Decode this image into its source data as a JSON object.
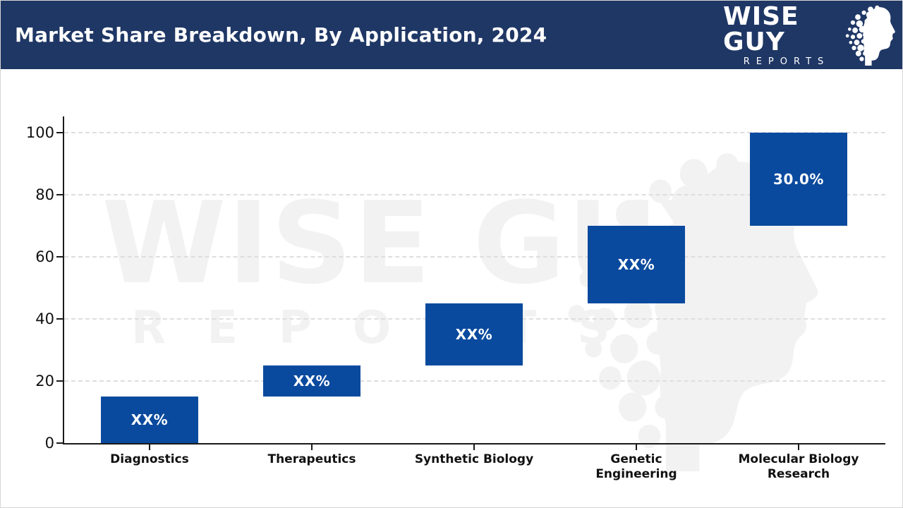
{
  "header": {
    "title": "Market Share Breakdown, By Application, 2024"
  },
  "logo": {
    "line1": "WISE GUY",
    "line2": "REPORTS"
  },
  "watermark": {
    "line1": "WISE GUY",
    "line2": "REPORTS"
  },
  "colors": {
    "header_bg": "#1F3765",
    "bar": "#0A4A9E",
    "axis": "#1A1A1A",
    "grid": "#DEDEDE",
    "watermark": "#F2F2F2",
    "bar_label": "#FFFFFF"
  },
  "chart_data": {
    "type": "bar",
    "variant": "floating stacked-waterfall segments",
    "title": "Market Share Breakdown, By Application, 2024",
    "xlabel": "",
    "ylabel": "",
    "ylim": [
      0,
      100
    ],
    "yticks": [
      0,
      20,
      40,
      60,
      80,
      100
    ],
    "grid": "horizontal dashed",
    "legend": "none",
    "categories": [
      "Diagnostics",
      "Therapeutics",
      "Synthetic Biology",
      "Genetic\nEngineering",
      "Molecular Biology\nResearch"
    ],
    "bars": [
      {
        "category": "Diagnostics",
        "start": 0,
        "end": 15,
        "label": "XX%"
      },
      {
        "category": "Therapeutics",
        "start": 15,
        "end": 25,
        "label": "XX%"
      },
      {
        "category": "Synthetic Biology",
        "start": 25,
        "end": 45,
        "label": "XX%"
      },
      {
        "category": "Genetic Engineering",
        "start": 45,
        "end": 70,
        "label": "XX%"
      },
      {
        "category": "Molecular Biology Research",
        "start": 70,
        "end": 100,
        "label": "30.0%"
      }
    ]
  }
}
